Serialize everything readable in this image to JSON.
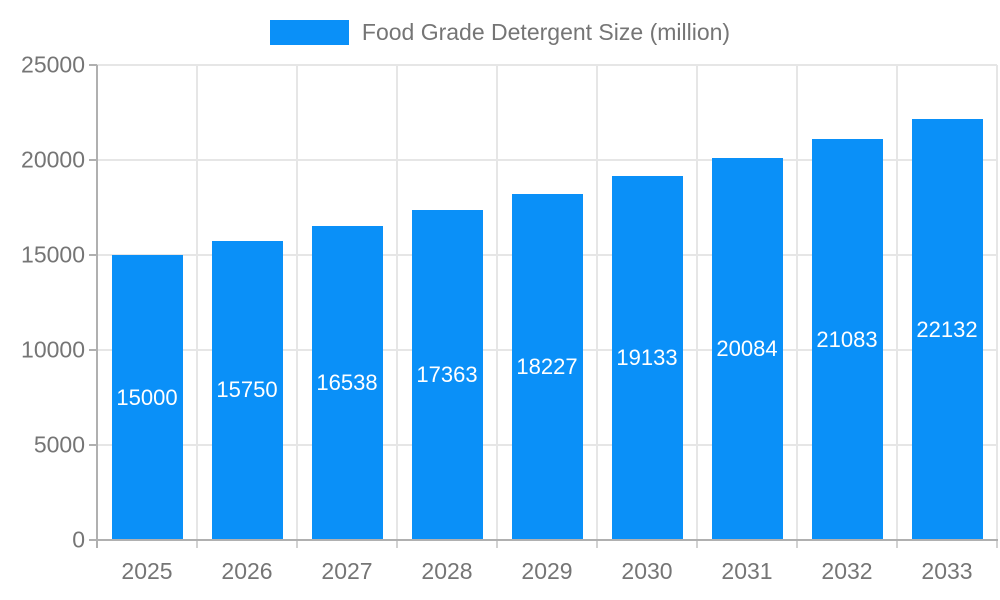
{
  "chart_data": {
    "type": "bar",
    "title": "",
    "legend_label": "Food Grade Detergent Size (million)",
    "legend_position": "top-center",
    "categories": [
      "2025",
      "2026",
      "2027",
      "2028",
      "2029",
      "2030",
      "2031",
      "2032",
      "2033"
    ],
    "values": [
      15000,
      15750,
      16538,
      17363,
      18227,
      19133,
      20084,
      21083,
      22132
    ],
    "bar_value_labels": [
      "15000",
      "15750",
      "16538",
      "17363",
      "18227",
      "19133",
      "20084",
      "21083",
      "22132"
    ],
    "xlabel": "",
    "ylabel": "",
    "ylim": [
      0,
      25000
    ],
    "y_ticks": [
      0,
      5000,
      10000,
      15000,
      20000,
      25000
    ],
    "y_tick_labels": [
      "0",
      "5000",
      "10000",
      "15000",
      "20000",
      "25000"
    ],
    "grid": true,
    "colors": {
      "bar": "#0a90f8",
      "bar_label_text": "#ffffff",
      "axis_text": "#757575",
      "grid_line": "#e6e6e6",
      "axis_line": "#b0b0b0",
      "x_tick_line": "#d2d2d2",
      "background": "#ffffff"
    }
  }
}
